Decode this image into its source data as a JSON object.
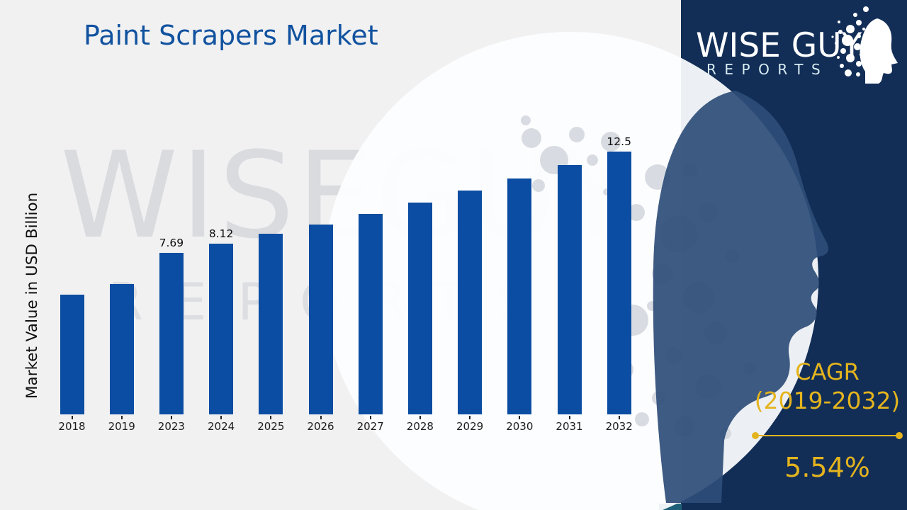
{
  "title": "Paint Scrapers Market",
  "watermark": {
    "line1": "WISEGUY",
    "line2": "REPORTS"
  },
  "brand": {
    "name_top": "WISE GUY",
    "name_bottom": "REPORTS"
  },
  "cagr": {
    "heading": "CAGR",
    "range": "(2019-2032)",
    "value": "5.54%"
  },
  "colors": {
    "background": "#f1f1f2",
    "bar": "#0b4da2",
    "title_text": "#11529f",
    "panel_navy": "#122e57",
    "gold_accent": "#e4b41e",
    "teal_accent": "#1d6077",
    "watermark_gray": "#d9dbdf"
  },
  "chart_data": {
    "type": "bar",
    "title": "Paint Scrapers Market",
    "xlabel": "",
    "ylabel": "Market Value in USD Billion",
    "unit": "USD Billion",
    "categories": [
      "2018",
      "2019",
      "2023",
      "2024",
      "2025",
      "2026",
      "2027",
      "2028",
      "2029",
      "2030",
      "2031",
      "2032"
    ],
    "values": [
      5.7,
      6.2,
      7.69,
      8.12,
      8.57,
      9.04,
      9.54,
      10.07,
      10.63,
      11.22,
      11.84,
      12.5
    ],
    "bar_labels": [
      "",
      "",
      "7.69",
      "8.12",
      "",
      "",
      "",
      "",
      "",
      "",
      "",
      "12.5"
    ],
    "ylim": [
      0,
      14
    ],
    "grid": false,
    "legend": null,
    "note": "Years 2020-2022 are not shown on the axis; labels appear only for 2023, 2024 and 2032"
  }
}
